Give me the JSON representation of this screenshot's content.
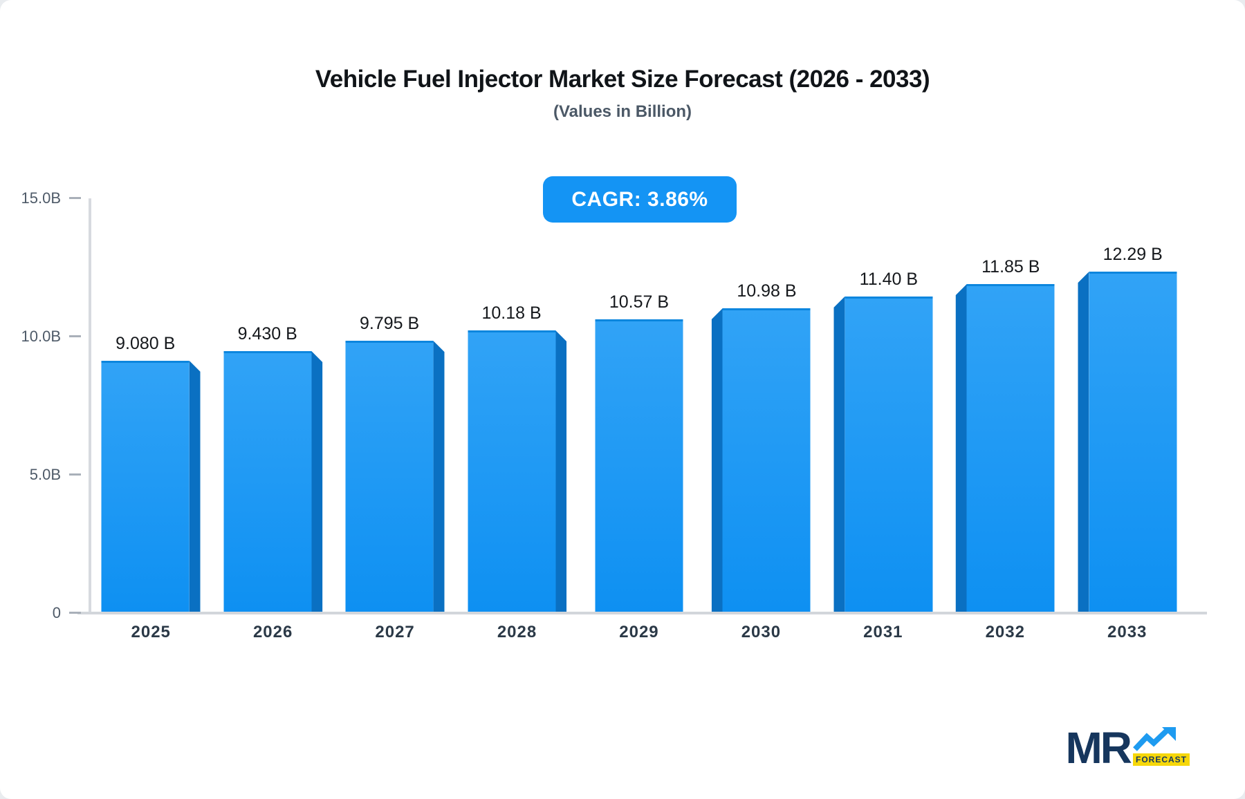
{
  "title": "Vehicle Fuel Injector Market Size Forecast (2026 - 2033)",
  "subtitle": "(Values in Billion)",
  "cagr_badge": "CAGR: 3.86%",
  "chart_data": {
    "type": "bar",
    "title": "Vehicle Fuel Injector Market Size Forecast (2026 - 2033)",
    "subtitle": "(Values in Billion)",
    "cagr_label": "CAGR: 3.86%",
    "categories": [
      "2025",
      "2026",
      "2027",
      "2028",
      "2029",
      "2030",
      "2031",
      "2032",
      "2033"
    ],
    "values": [
      9.08,
      9.43,
      9.795,
      10.18,
      10.57,
      10.98,
      11.4,
      11.85,
      12.29
    ],
    "value_labels": [
      "9.080 B",
      "9.430 B",
      "9.795 B",
      "10.18 B",
      "10.57 B",
      "10.98 B",
      "11.40 B",
      "11.85 B",
      "12.29 B"
    ],
    "ylim": [
      0,
      15
    ],
    "y_ticks": [
      {
        "label": "15.0B",
        "value": 15
      },
      {
        "label": "10.0B",
        "value": 10
      },
      {
        "label": "5.0B",
        "value": 5
      },
      {
        "label": "0",
        "value": 0
      }
    ],
    "grid": false,
    "legend": false,
    "bar_style": "3d-beveled",
    "colors": {
      "bar_face": "#1496f4",
      "bar_side": "#0a70c2",
      "badge_background": "#1494f4",
      "axis": "#d7dadf"
    }
  },
  "logo": {
    "mr": "MR",
    "forecast": "FORECAST"
  }
}
